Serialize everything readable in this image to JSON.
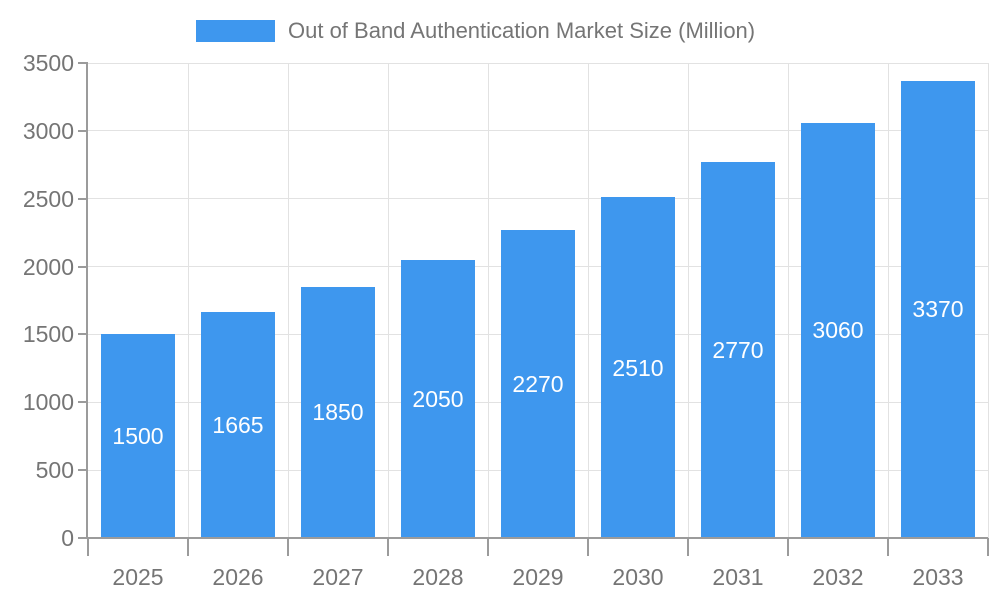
{
  "legend": {
    "title": "Out of Band Authentication Market Size (Million)"
  },
  "chart_data": {
    "type": "bar",
    "title": "Out of Band Authentication Market Size (Million)",
    "categories": [
      "2025",
      "2026",
      "2027",
      "2028",
      "2029",
      "2030",
      "2031",
      "2032",
      "2033"
    ],
    "values": [
      1500,
      1665,
      1850,
      2050,
      2270,
      2510,
      2770,
      3060,
      3370
    ],
    "xlabel": "",
    "ylabel": "",
    "ylim": [
      0,
      3500
    ],
    "ytick_step": 500,
    "yticks": [
      0,
      500,
      1000,
      1500,
      2000,
      2500,
      3000,
      3500
    ],
    "grid": true,
    "legend_position": "top",
    "bar_value_labels": "inside-center"
  },
  "colors": {
    "bar": "#3E97EE",
    "bar_label": "#FFFFFF",
    "axis": "#9B9B9B",
    "grid": "#E2E2E2",
    "text": "#757575",
    "background": "#FFFFFF"
  }
}
